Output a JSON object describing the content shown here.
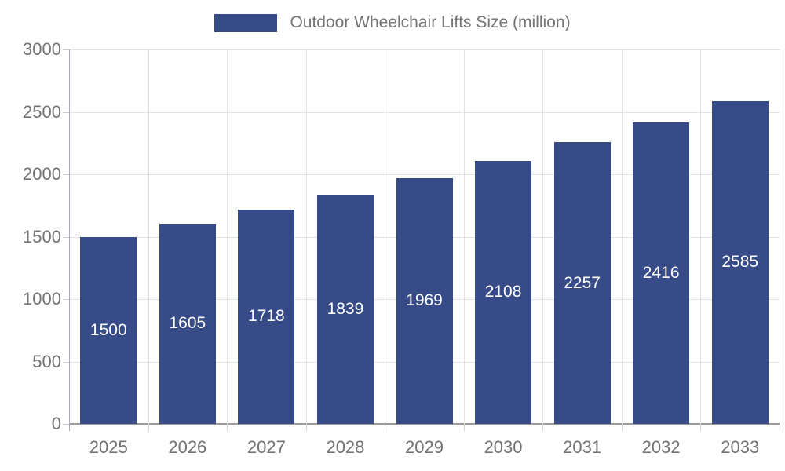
{
  "legend": {
    "label": "Outdoor Wheelchair Lifts Size (million)"
  },
  "chart_data": {
    "type": "bar",
    "title": "Outdoor Wheelchair Lifts Size (million)",
    "categories": [
      "2025",
      "2026",
      "2027",
      "2028",
      "2029",
      "2030",
      "2031",
      "2032",
      "2033"
    ],
    "values": [
      1500,
      1605,
      1718,
      1839,
      1969,
      2108,
      2257,
      2416,
      2585
    ],
    "xlabel": "",
    "ylabel": "",
    "ylim": [
      0,
      3000
    ],
    "ytick_step": 500,
    "yticks": [
      0,
      500,
      1000,
      1500,
      2000,
      2500,
      3000
    ],
    "grid": true,
    "legend_position": "top-center",
    "bar_color": "#374b88",
    "value_label_color": "#ffffff",
    "axis_label_color": "#737373",
    "gridline_color": "#e3e3e3",
    "value_labels_inside": true
  }
}
